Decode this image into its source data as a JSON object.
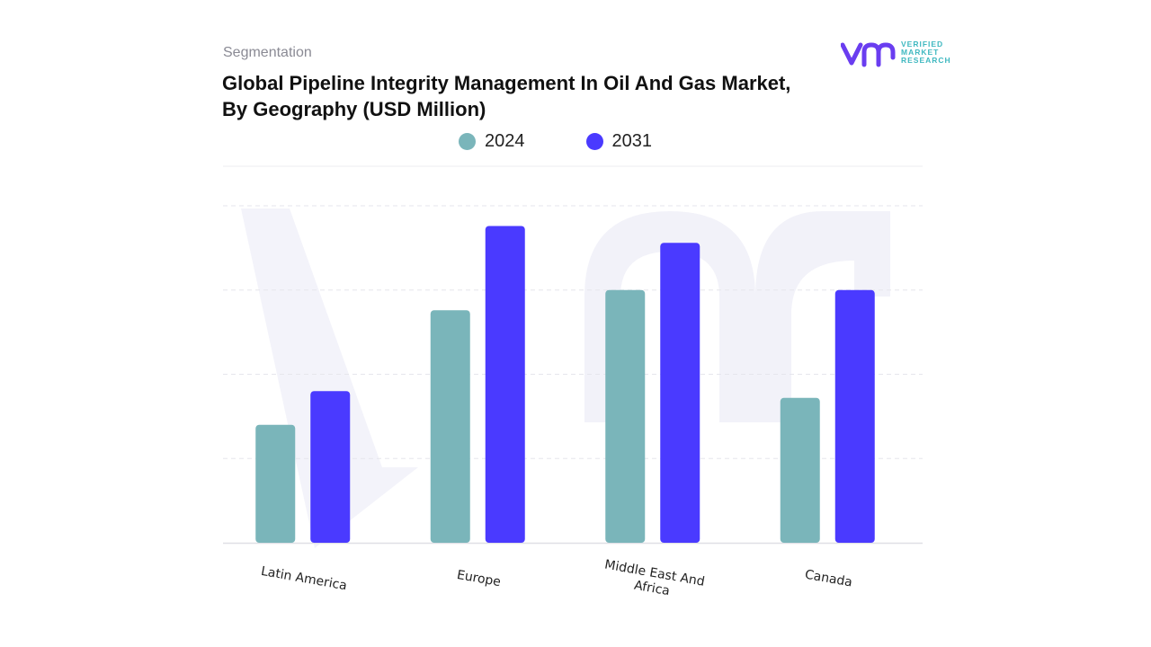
{
  "header": {
    "segment_label": "Segmentation",
    "title_line1": "Global Pipeline Integrity Management In Oil And Gas Market,",
    "title_line2": "By Geography (USD Million)"
  },
  "brand": {
    "logo_text": [
      "VERIFIED",
      "MARKET",
      "RESEARCH"
    ],
    "logo_icon": "vmr-logo-icon",
    "primary_color": "#6a3df0",
    "secondary_color": "#3fb8c0"
  },
  "chart_data": {
    "type": "bar",
    "title": "Global Pipeline Integrity Management In Oil And Gas Market, By Geography (USD Million)",
    "categories": [
      "Latin America",
      "Europe",
      "Middle East And Africa",
      "Canada"
    ],
    "category_lines": [
      [
        "Latin America"
      ],
      [
        "Europe"
      ],
      [
        "Middle East And",
        "Africa"
      ],
      [
        "Canada"
      ]
    ],
    "series": [
      {
        "name": "2024",
        "color": "#7ab5ba",
        "values": [
          35,
          69,
          75,
          43
        ]
      },
      {
        "name": "2031",
        "color": "#4a3aff",
        "values": [
          45,
          94,
          89,
          75
        ]
      }
    ],
    "ylim": [
      0,
      100
    ],
    "grid": true,
    "y_axis_labels_visible": false,
    "legend_position": "top-center"
  }
}
